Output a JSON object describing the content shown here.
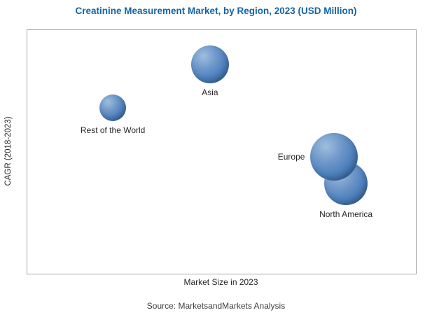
{
  "title": "Creatinine Measurement Market, by Region, 2023 (USD Million)",
  "source": "Source: MarketsandMarkets Analysis",
  "chart_data": {
    "type": "scatter",
    "subtype": "bubble",
    "title": "Creatinine Measurement Market, by Region, 2023 (USD Million)",
    "xlabel": "Market Size in 2023",
    "ylabel": "CAGR (2018-2023)",
    "axis_tick_labels": "none shown",
    "grid": false,
    "legend": false,
    "bubble_color": "#4f81bd",
    "points": [
      {
        "label": "Asia",
        "x": 0.47,
        "y": 0.86,
        "r": 27,
        "label_position": "below"
      },
      {
        "label": "Rest of the World",
        "x": 0.22,
        "y": 0.68,
        "r": 19,
        "label_position": "below"
      },
      {
        "label": "North America",
        "x": 0.82,
        "y": 0.37,
        "r": 31,
        "label_position": "below"
      },
      {
        "label": "Europe",
        "x": 0.79,
        "y": 0.48,
        "r": 34,
        "label_position": "left"
      }
    ]
  }
}
